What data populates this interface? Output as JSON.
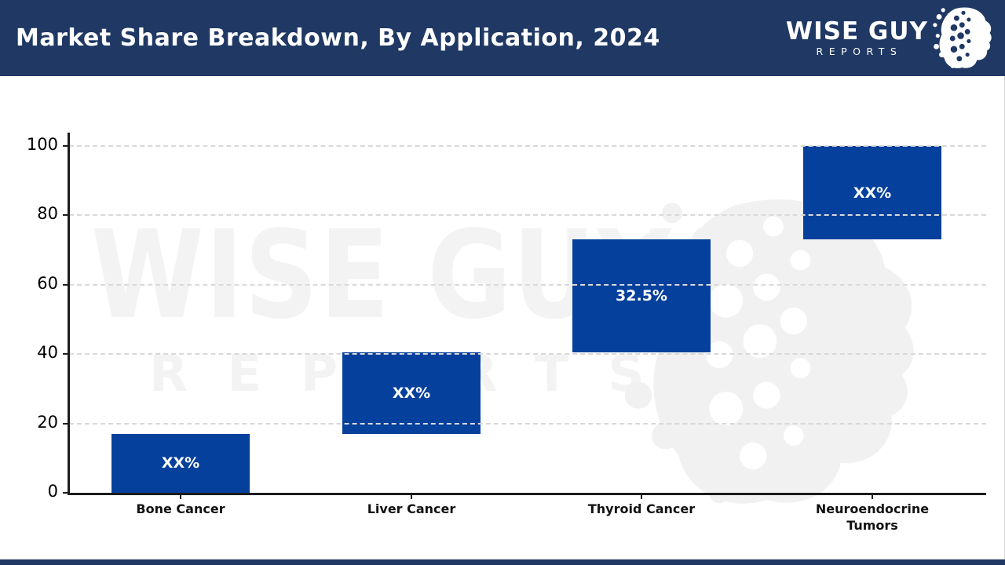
{
  "header": {
    "title": "Market Share Breakdown, By Application, 2024",
    "logo_line1": "WISE GUY",
    "logo_line2": "REPORTS",
    "bg_color": "#1f3864"
  },
  "watermark": {
    "line1": "WISE GUY",
    "line2": "REPORTS"
  },
  "chart_data": {
    "type": "bar",
    "subtype": "floating-waterfall",
    "title": "Market Share Breakdown, By Application, 2024",
    "categories": [
      "Bone Cancer",
      "Liver Cancer",
      "Thyroid Cancer",
      "Neuroendocrine Tumors"
    ],
    "series": [
      {
        "name": "Market Share %",
        "segments": [
          {
            "category": "Bone Cancer",
            "start": 0,
            "end": 17,
            "label": "XX%"
          },
          {
            "category": "Liver Cancer",
            "start": 17,
            "end": 40.5,
            "label": "XX%"
          },
          {
            "category": "Thyroid Cancer",
            "start": 40.5,
            "end": 73,
            "label": "32.5%"
          },
          {
            "category": "Neuroendocrine Tumors",
            "start": 73,
            "end": 100,
            "label": "XX%"
          }
        ]
      }
    ],
    "ylim": [
      0,
      100
    ],
    "yticks": [
      "0",
      "20",
      "40",
      "60",
      "80",
      "100"
    ],
    "xlabel": "",
    "ylabel": "",
    "grid": "horizontal-dashed",
    "legend": "none",
    "bar_color": "#04409c",
    "bar_label_color": "#ffffff",
    "axis_color": "#1c1c1c",
    "grid_color": "#d9d9d9",
    "watermark_color": "#f3f3f3"
  }
}
